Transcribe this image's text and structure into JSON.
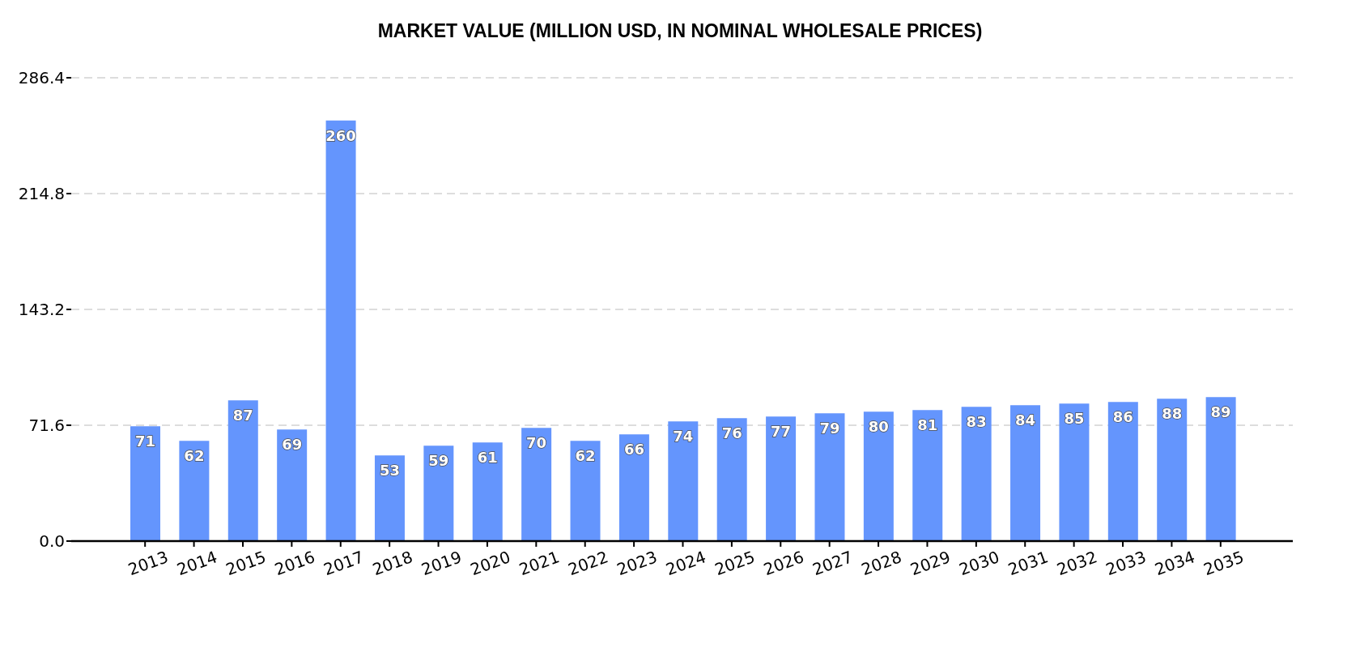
{
  "chart_data": {
    "type": "bar",
    "title": "MARKET VALUE (MILLION USD, IN NOMINAL WHOLESALE PRICES)",
    "categories": [
      "2013",
      "2014",
      "2015",
      "2016",
      "2017",
      "2018",
      "2019",
      "2020",
      "2021",
      "2022",
      "2023",
      "2024",
      "2025",
      "2026",
      "2027",
      "2028",
      "2029",
      "2030",
      "2031",
      "2032",
      "2033",
      "2034",
      "2035"
    ],
    "values": [
      71,
      62,
      87,
      69,
      260,
      53,
      59,
      61,
      70,
      62,
      66,
      74,
      76,
      77,
      79,
      80,
      81,
      83,
      84,
      85,
      86,
      88,
      89
    ],
    "color": "#6495fd",
    "ylim": [
      0,
      286.4
    ],
    "yticks": [
      {
        "value": 0,
        "label": "0.0"
      },
      71.6,
      143.2,
      214.8,
      286.4
    ],
    "grid": "y",
    "data_labels": true
  }
}
